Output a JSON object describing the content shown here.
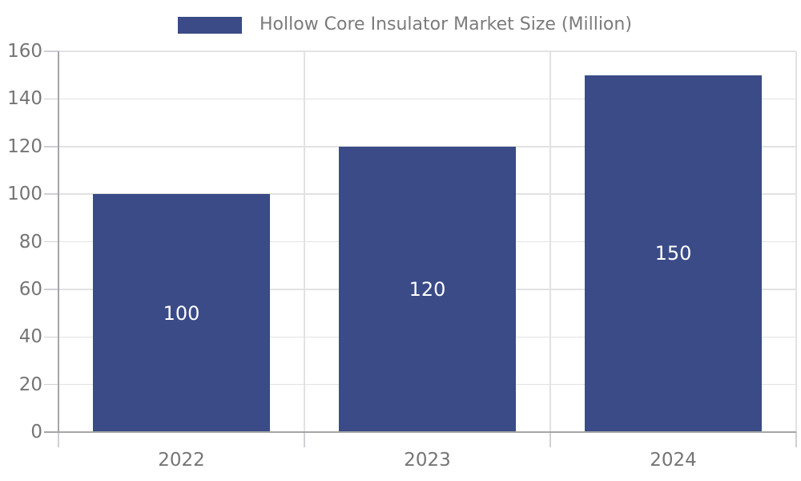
{
  "chart_data": {
    "type": "bar",
    "title": "Hollow Core Insulator Market Size (Million)",
    "categories": [
      "2022",
      "2023",
      "2024"
    ],
    "values": [
      100,
      120,
      150
    ],
    "value_labels": [
      "100",
      "120",
      "150"
    ],
    "xlabel": "",
    "ylabel": "",
    "ylim": [
      0,
      160
    ],
    "yticks": [
      0,
      20,
      40,
      60,
      80,
      100,
      120,
      140,
      160
    ],
    "grid": true,
    "legend_position": "top-center",
    "value_label_position": "inside-center",
    "colors": {
      "bar": "#3A4B87",
      "value_label": "#FFFFFF",
      "axis_text": "#757575",
      "legend_text": "#7B7B7B",
      "axis_line": "#A6A6A6",
      "gridline": "#E2E2E2",
      "tick": "#CDD0D6",
      "background": "#FFFFFF"
    }
  }
}
